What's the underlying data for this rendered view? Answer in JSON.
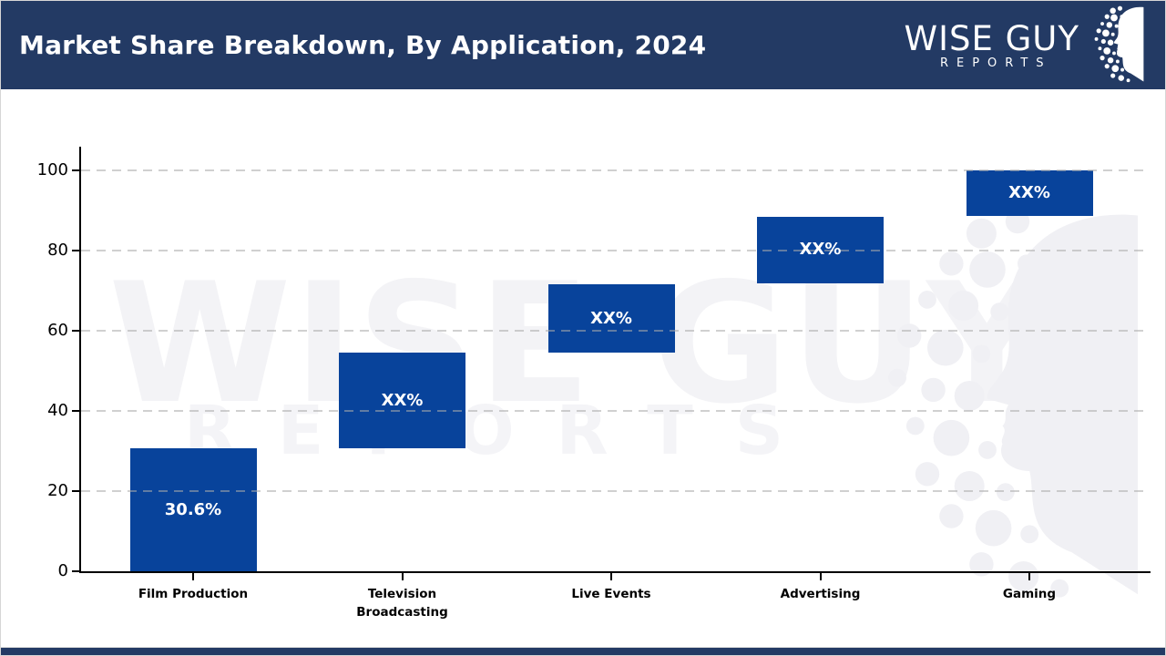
{
  "header": {
    "title": "Market Share Breakdown, By Application, 2024",
    "logo": {
      "line1": "WISE GUY",
      "line2": "REPORTS"
    }
  },
  "watermark": {
    "line1": "WISE GUY",
    "line2": "REPORTS"
  },
  "footer": {},
  "colors": {
    "header_bg": "#233a64",
    "footer_bg": "#233a64",
    "bar_blue": "#08439b",
    "grid_gray": "#d9d9d9",
    "watermark_gray": "#f3f3f6",
    "text_black": "#000000",
    "text_white": "#ffffff"
  },
  "chart_data": {
    "type": "bar",
    "subtype": "floating-waterfall",
    "title": "Market Share Breakdown, By Application, 2024",
    "xlabel": "",
    "ylabel": "",
    "ylim": [
      0,
      105
    ],
    "yticks": [
      0,
      20,
      40,
      60,
      80,
      100
    ],
    "grid": "dashed horizontal",
    "legend": "none",
    "categories": [
      "Film Production",
      "Television Broadcasting",
      "Live Events",
      "Advertising",
      "Gaming"
    ],
    "segments": [
      {
        "category": "Film Production",
        "start": 0,
        "end": 30.6,
        "label": "30.6%"
      },
      {
        "category": "Television Broadcasting",
        "start": 30.6,
        "end": 54.5,
        "label": "XX%"
      },
      {
        "category": "Live Events",
        "start": 54.5,
        "end": 71.5,
        "label": "XX%"
      },
      {
        "category": "Advertising",
        "start": 71.9,
        "end": 88.4,
        "label": "XX%"
      },
      {
        "category": "Gaming",
        "start": 88.6,
        "end": 100,
        "label": "XX%"
      }
    ]
  }
}
